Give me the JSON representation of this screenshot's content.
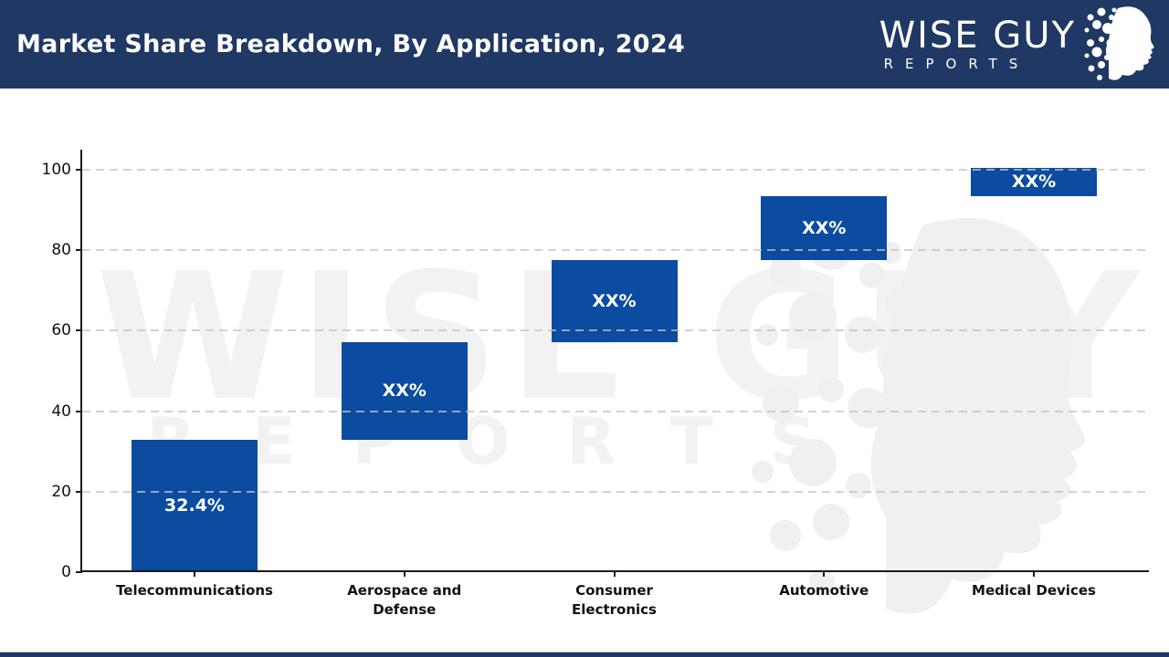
{
  "header": {
    "title": "Market Share Breakdown, By Application, 2024",
    "logo": {
      "line1": "WISE GUY",
      "line2": "REPORTS"
    },
    "bg_color": "#1f3864"
  },
  "watermark": {
    "line1": "WISE GUY",
    "line2": "REPORTS"
  },
  "chart_data": {
    "type": "bar",
    "subtype": "waterfall",
    "title": "Market Share Breakdown, By Application, 2024",
    "xlabel": "",
    "ylabel": "",
    "categories": [
      "Telecommunications",
      "Aerospace and Defense",
      "Consumer Electronics",
      "Automotive",
      "Medical Devices"
    ],
    "category_lines": [
      [
        "Telecommunications"
      ],
      [
        "Aerospace and",
        "Defense"
      ],
      [
        "Consumer",
        "Electronics"
      ],
      [
        "Automotive"
      ],
      [
        "Medical Devices"
      ]
    ],
    "series": [
      {
        "name": "Market Share (%)",
        "segments": [
          {
            "category": "Telecommunications",
            "start": 0,
            "end": 32.4,
            "label": "32.4%"
          },
          {
            "category": "Aerospace and Defense",
            "start": 32.4,
            "end": 56.8,
            "label": "XX%"
          },
          {
            "category": "Consumer Electronics",
            "start": 56.8,
            "end": 77.0,
            "label": "XX%"
          },
          {
            "category": "Automotive",
            "start": 77.0,
            "end": 93.0,
            "label": "XX%"
          },
          {
            "category": "Medical Devices",
            "start": 93.0,
            "end": 100.0,
            "label": "XX%"
          }
        ]
      }
    ],
    "yticks": [
      0,
      20,
      40,
      60,
      80,
      100
    ],
    "ylim": [
      0,
      105
    ],
    "grid": "horizontal-dashed",
    "legend": "none",
    "colors": {
      "bar": "#0b4ba0",
      "bar_label_text": "#ffffff",
      "grid": "#c3c3c3",
      "axis": "#1a1a1a",
      "tick_text": "#111111",
      "header_footer": "#1f3864",
      "watermark": "#f2f2f2"
    }
  }
}
